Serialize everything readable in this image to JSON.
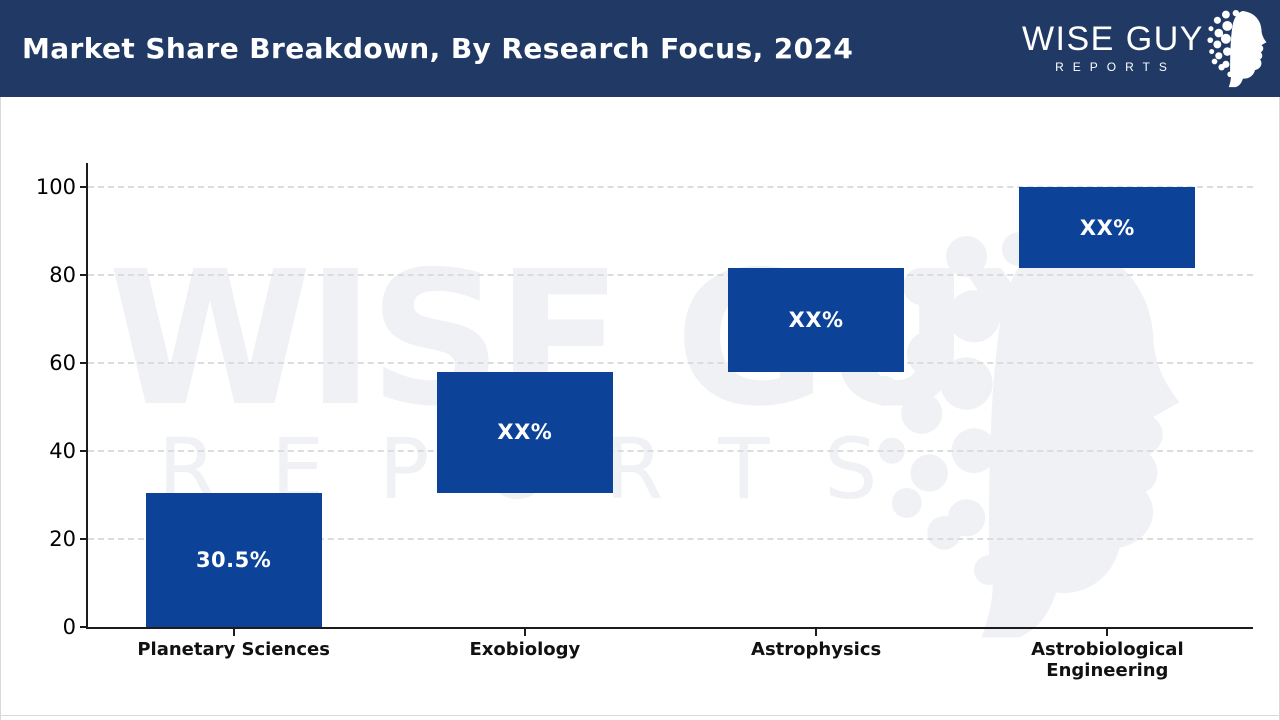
{
  "header": {
    "bg_color": "#203A65",
    "title": "Market Share Breakdown, By Research Focus, 2024",
    "logo": {
      "wordmark": "WISE GUY",
      "subtext": "REPORTS"
    }
  },
  "watermark": {
    "wordmark": "WISE GUY",
    "subtext": "R E P O R T S"
  },
  "chart_data": {
    "type": "bar",
    "subtype": "waterfall",
    "title": "Market Share Breakdown, By Research Focus, 2024",
    "categories": [
      "Planetary Sciences",
      "Exobiology",
      "Astrophysics",
      "Astrobiological Engineering"
    ],
    "segments": [
      {
        "category": "Planetary Sciences",
        "start": 0,
        "end": 30.5,
        "value": 30.5,
        "label": "30.5%"
      },
      {
        "category": "Exobiology",
        "start": 30.5,
        "end": 58,
        "value": 27.5,
        "label": "XX%"
      },
      {
        "category": "Astrophysics",
        "start": 58,
        "end": 81.5,
        "value": 23.5,
        "label": "XX%"
      },
      {
        "category": "Astrobiological Engineering",
        "start": 81.5,
        "end": 100,
        "value": 18.5,
        "label": "XX%"
      }
    ],
    "ylim": [
      0,
      100
    ],
    "yticks": [
      0,
      20,
      40,
      60,
      80,
      100
    ],
    "grid": "horizontal-dashed",
    "legend": "none",
    "bar_color": "#0C4398",
    "bar_label_color": "#ffffff",
    "axis_color": "#1c1c1c"
  }
}
